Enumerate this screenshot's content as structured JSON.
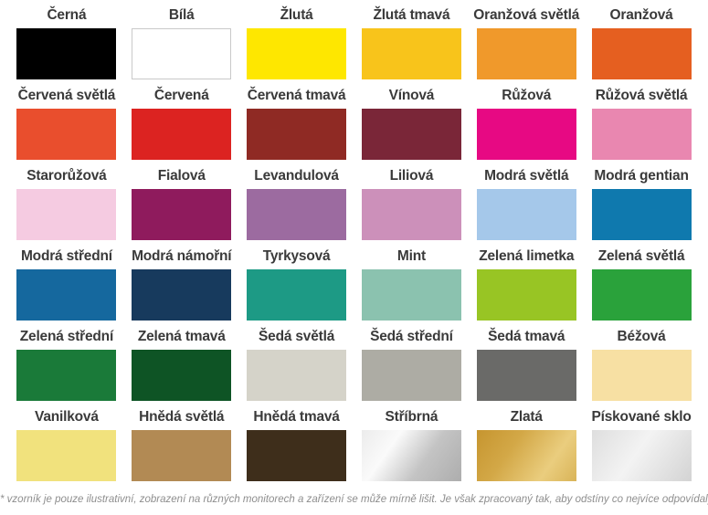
{
  "page": {
    "background": "#ffffff",
    "label_color": "#3a3a3a"
  },
  "chart_data": {
    "type": "table",
    "title": "",
    "columns": 6,
    "rows_count": 6,
    "legend_position": "labels-above-swatches",
    "rows": [
      {
        "label": "Černá",
        "color": "#000000"
      },
      {
        "label": "Bílá",
        "color": "#FFFFFF",
        "border": "#C9C9C9"
      },
      {
        "label": "Žlutá",
        "color": "#FEE700"
      },
      {
        "label": "Žlutá tmavá",
        "color": "#F8C41B"
      },
      {
        "label": "Oranžová světlá",
        "color": "#F0992B"
      },
      {
        "label": "Oranžová",
        "color": "#E55F20"
      },
      {
        "label": "Červená světlá",
        "color": "#E94E2D"
      },
      {
        "label": "Červená",
        "color": "#DC2321"
      },
      {
        "label": "Červená tmavá",
        "color": "#8F2A24"
      },
      {
        "label": "Vínová",
        "color": "#7A2638"
      },
      {
        "label": "Růžová",
        "color": "#E70983"
      },
      {
        "label": "Růžová světlá",
        "color": "#E987B0"
      },
      {
        "label": "Starorůžová",
        "color": "#F5CBE1"
      },
      {
        "label": "Fialová",
        "color": "#8F1B5D"
      },
      {
        "label": "Levandulová",
        "color": "#9C6BA0"
      },
      {
        "label": "Liliová",
        "color": "#CC90BA"
      },
      {
        "label": "Modrá světlá",
        "color": "#A5C8EA"
      },
      {
        "label": "Modrá gentian",
        "color": "#0F79AE"
      },
      {
        "label": "Modrá střední",
        "color": "#15689E"
      },
      {
        "label": "Modrá námořní",
        "color": "#173A5D"
      },
      {
        "label": "Tyrkysová",
        "color": "#1D9A85"
      },
      {
        "label": "Mint",
        "color": "#8BC2AF"
      },
      {
        "label": "Zelená limetka",
        "color": "#98C524"
      },
      {
        "label": "Zelená světlá",
        "color": "#2AA23B"
      },
      {
        "label": "Zelená střední",
        "color": "#1A7A39"
      },
      {
        "label": "Zelená tmavá",
        "color": "#0E5425"
      },
      {
        "label": "Šedá světlá",
        "color": "#D5D3C9"
      },
      {
        "label": "Šedá střední",
        "color": "#ADACA4"
      },
      {
        "label": "Šedá tmavá",
        "color": "#6A6A68"
      },
      {
        "label": "Béžová",
        "color": "#F7E0A3"
      },
      {
        "label": "Vanilková",
        "color": "#F1E27D"
      },
      {
        "label": "Hnědá světlá",
        "color": "#B28A54"
      },
      {
        "label": "Hnědá tmavá",
        "color": "#3E2E1B"
      },
      {
        "label": "Stříbrná",
        "gradient": [
          "#ECECEC 0%",
          "#FAFAFA 30%",
          "#C4C4C4 62%",
          "#ADADAD 100%"
        ]
      },
      {
        "label": "Zlatá",
        "gradient": [
          "#C6952F 0%",
          "#D3A847 35%",
          "#EACD7E 72%",
          "#D9B458 100%"
        ]
      },
      {
        "label": "Pískované sklo",
        "gradient": [
          "#DEDEDE 0%",
          "#F3F3F3 45%",
          "#D3D3D3 100%"
        ]
      }
    ]
  },
  "footnote": {
    "text": "* vzorník je pouze ilustrativní, zobrazení na různých monitorech a zařízení se může mírně lišit. Je však zpracovaný tak, aby odstíny co nejvíce odpovídaly.",
    "color": "#8e8e8e"
  }
}
